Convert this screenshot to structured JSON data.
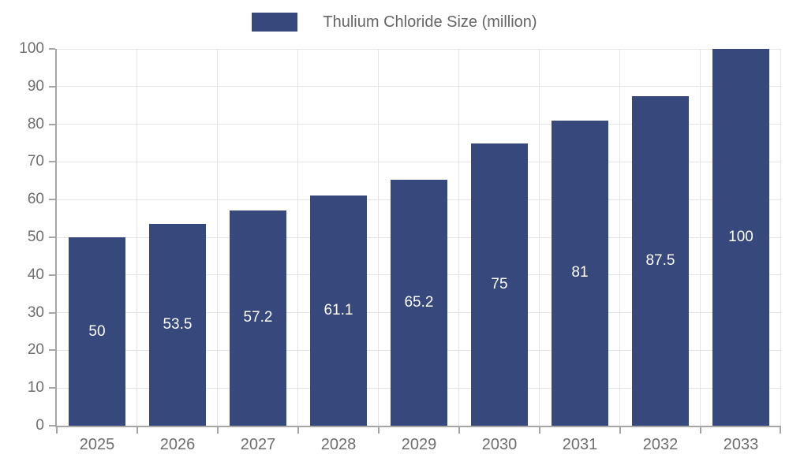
{
  "chart_data": {
    "type": "bar",
    "legend": "Thulium Chloride Size (million)",
    "categories": [
      "2025",
      "2026",
      "2027",
      "2028",
      "2029",
      "2030",
      "2031",
      "2032",
      "2033"
    ],
    "values": [
      50,
      53.5,
      57.2,
      61.1,
      65.2,
      75,
      81,
      87.5,
      100
    ],
    "value_labels": [
      "50",
      "53.5",
      "57.2",
      "61.1",
      "65.2",
      "75",
      "81",
      "87.5",
      "100"
    ],
    "xlabel": "",
    "ylabel": "",
    "ylim": [
      0,
      100
    ],
    "y_ticks": [
      0,
      10,
      20,
      30,
      40,
      50,
      60,
      70,
      80,
      90,
      100
    ],
    "grid": "on",
    "legend_position": "top-center",
    "colors": {
      "bar": "#37487D",
      "bar_label": "#FFFFFF",
      "grid_line": "#E4E4E4",
      "axis_line": "#A6A6A6",
      "tick_mark": "#A6A6A6",
      "axis_text": "#6E6E6E",
      "legend_text": "#666666",
      "background": "#FFFFFF"
    }
  }
}
